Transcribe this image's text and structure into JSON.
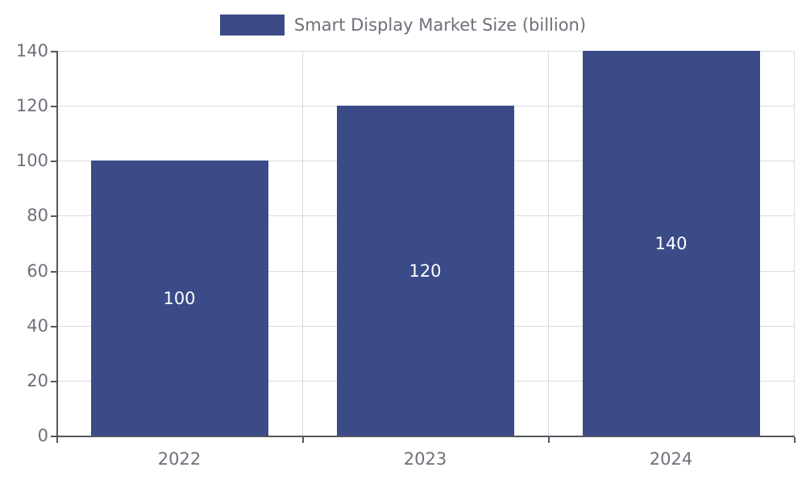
{
  "chart_data": {
    "type": "bar",
    "title": "Smart Display Market Size (billion)",
    "categories": [
      "2022",
      "2023",
      "2024"
    ],
    "values": [
      100,
      120,
      140
    ],
    "series": [
      {
        "name": "Smart Display Market Size (billion)",
        "values": [
          100,
          120,
          140
        ]
      }
    ],
    "xlabel": "",
    "ylabel": "",
    "ylim": [
      0,
      140
    ],
    "yticks": [
      0,
      20,
      40,
      60,
      80,
      100,
      120,
      140
    ],
    "grid": true,
    "legend_position": "top-center",
    "bar_labels": [
      "100",
      "120",
      "140"
    ],
    "colors": {
      "bar": "#3a4b87",
      "bar_value_text": "#ffffff",
      "axis_text": "#6e7079",
      "grid_line": "#d9dce3",
      "axis_line": "#55575e"
    }
  },
  "legend": {
    "label": "Smart Display Market Size (billion)"
  }
}
